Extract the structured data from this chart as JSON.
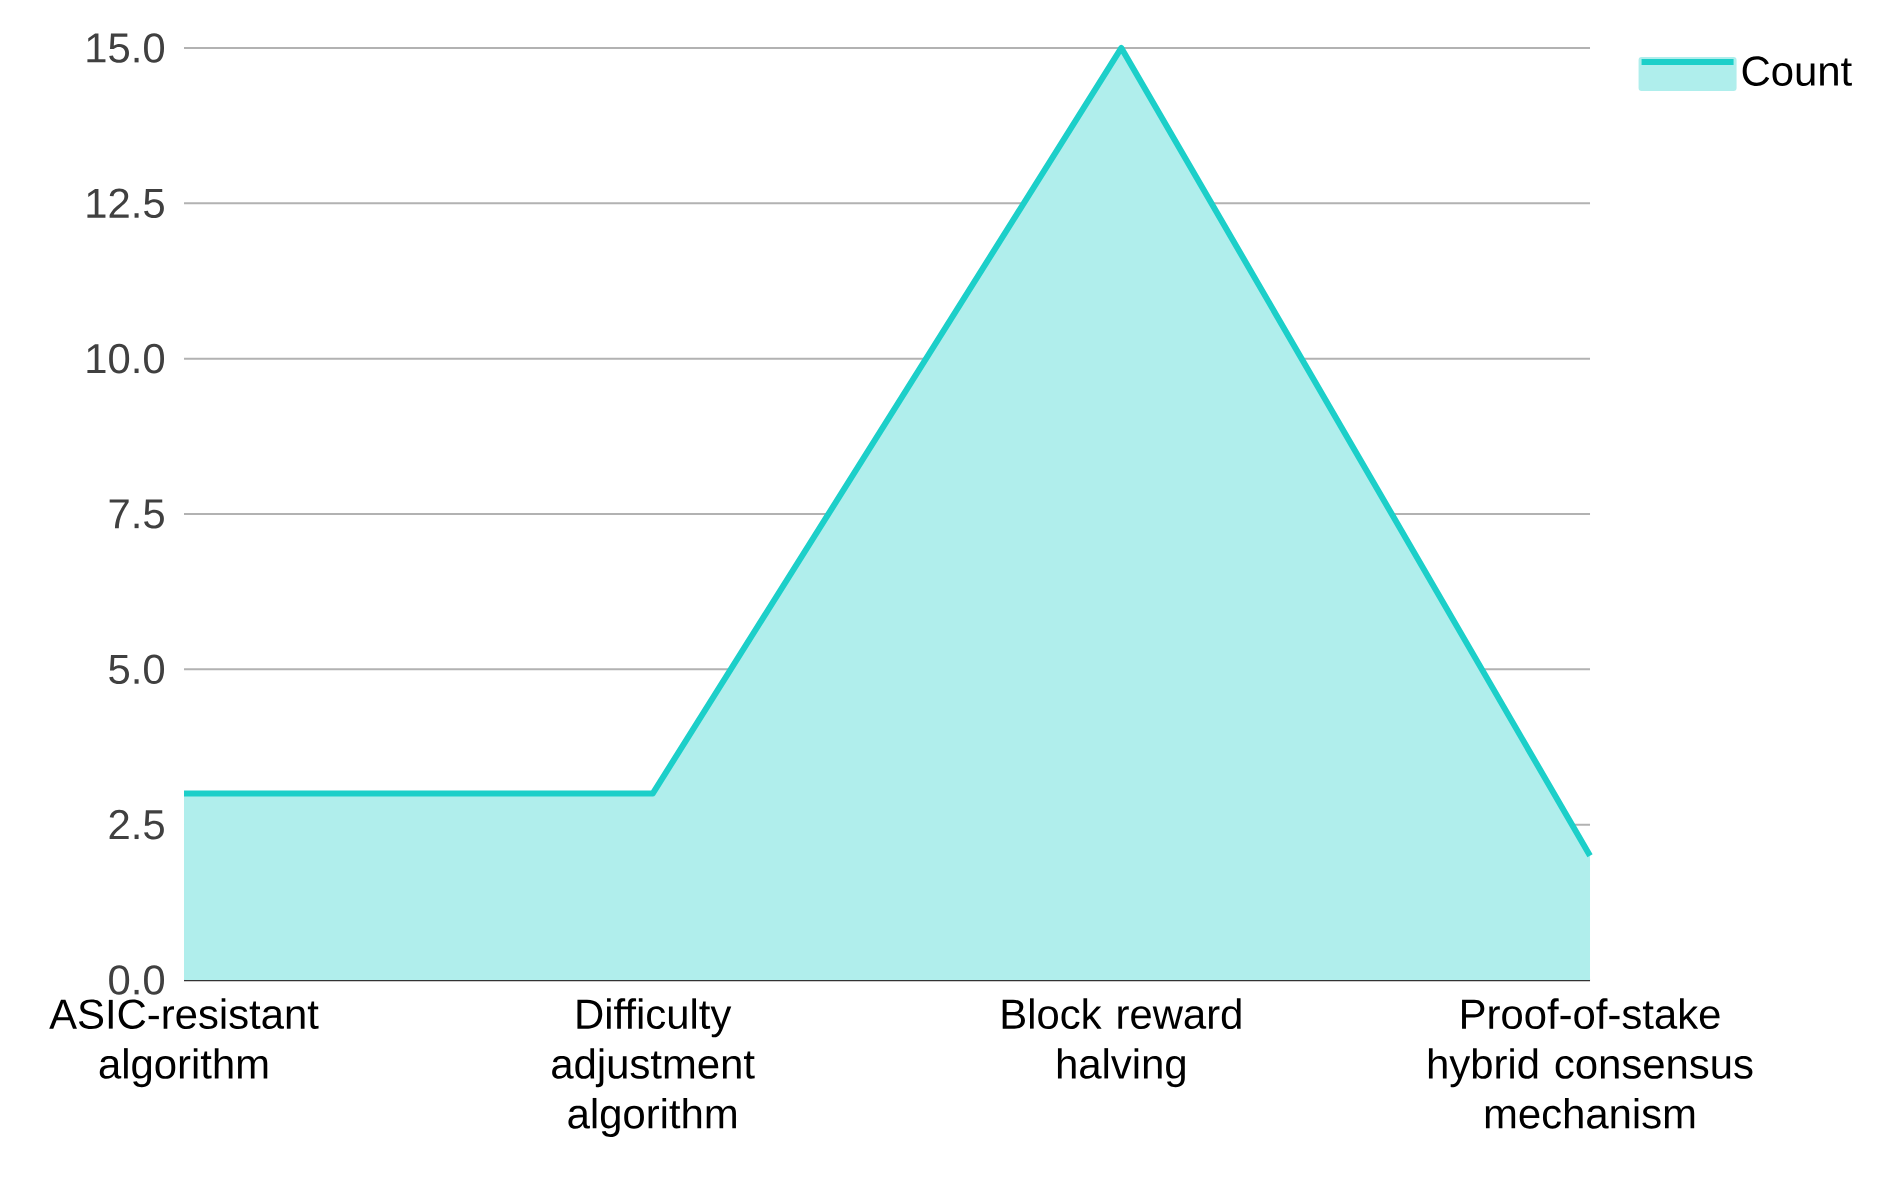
{
  "chart_data": {
    "type": "area",
    "categories": [
      "ASIC-resistant algorithm",
      "Difficulty adjustment algorithm",
      "Block reward halving",
      "Proof-of-stake hybrid consensus mechanism"
    ],
    "series": [
      {
        "name": "Count",
        "color": "#1ccfc9",
        "values": [
          3,
          3,
          15,
          2
        ]
      }
    ],
    "ylim": [
      0,
      15
    ],
    "yticks": [
      {
        "value": 0,
        "label": "0.0"
      },
      {
        "value": 2.5,
        "label": "2.5"
      },
      {
        "value": 5,
        "label": "5.0"
      },
      {
        "value": 7.5,
        "label": "7.5"
      },
      {
        "value": 10,
        "label": "10.0"
      },
      {
        "value": 12.5,
        "label": "12.5"
      },
      {
        "value": 15,
        "label": "15.0"
      }
    ],
    "grid": "y",
    "legend": "top right"
  }
}
